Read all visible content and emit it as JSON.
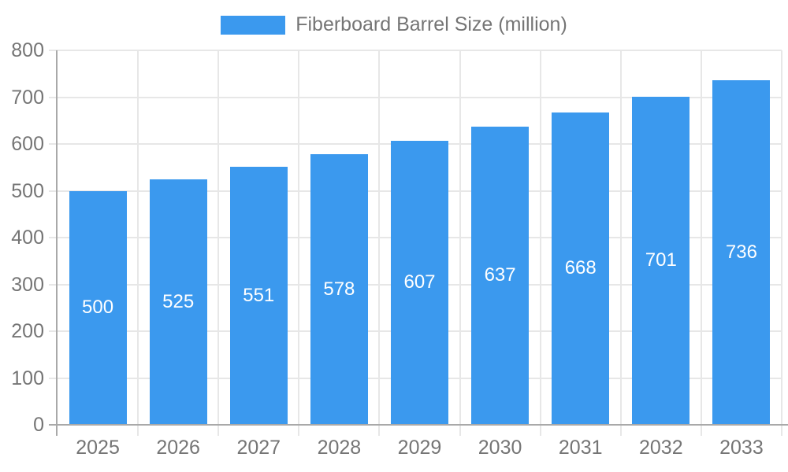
{
  "legend": {
    "label": "Fiberboard Barrel Size (million)"
  },
  "colors": {
    "bar": "#3b99ee",
    "grid": "#e7e7e7",
    "axis": "#a9a9a9",
    "text": "#757575",
    "bar_label": "#ffffff",
    "background": "#ffffff"
  },
  "chart_data": {
    "type": "bar",
    "title": "Fiberboard Barrel Size (million)",
    "categories": [
      "2025",
      "2026",
      "2027",
      "2028",
      "2029",
      "2030",
      "2031",
      "2032",
      "2033"
    ],
    "values": [
      500,
      525,
      551,
      578,
      607,
      637,
      668,
      701,
      736
    ],
    "xlabel": "",
    "ylabel": "",
    "ylim": [
      0,
      800
    ],
    "ytick_step": 100,
    "ytick_labels": [
      "0",
      "100",
      "200",
      "300",
      "400",
      "500",
      "600",
      "700",
      "800"
    ],
    "grid": true,
    "legend_position": "top-center",
    "value_label_position": "inside-center"
  }
}
